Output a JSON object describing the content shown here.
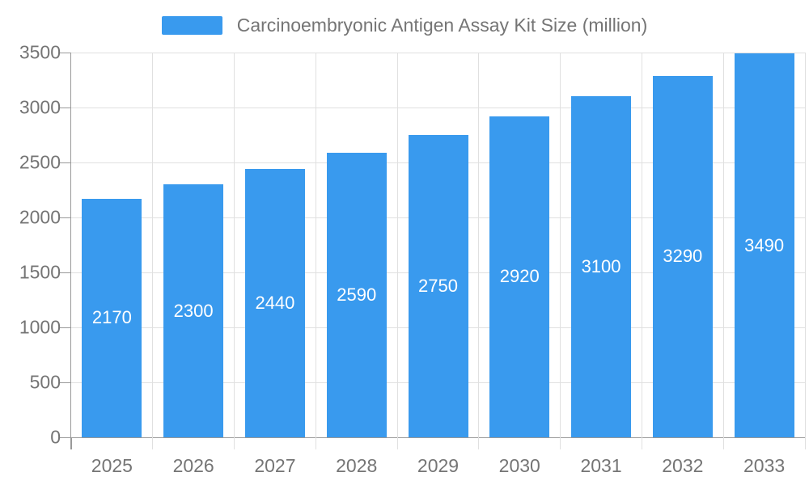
{
  "chart_data": {
    "type": "bar",
    "title": "Carcinoembryonic Antigen Assay Kit Size (million)",
    "categories": [
      "2025",
      "2026",
      "2027",
      "2028",
      "2029",
      "2030",
      "2031",
      "2032",
      "2033"
    ],
    "values": [
      2170,
      2300,
      2440,
      2590,
      2750,
      2920,
      3100,
      3290,
      3490
    ],
    "xlabel": "",
    "ylabel": "",
    "ylim": [
      0,
      3500
    ],
    "yticks": [
      0,
      500,
      1000,
      1500,
      2000,
      2500,
      3000,
      3500
    ],
    "grid": true,
    "legend_position": "top",
    "value_label_position": "inside-center",
    "colors": {
      "bar": "#399aee",
      "value_label": "#ffffff",
      "axis_label": "#757575",
      "title": "#757575",
      "grid": "#e0e0e0",
      "axis_line": "#999999"
    }
  }
}
